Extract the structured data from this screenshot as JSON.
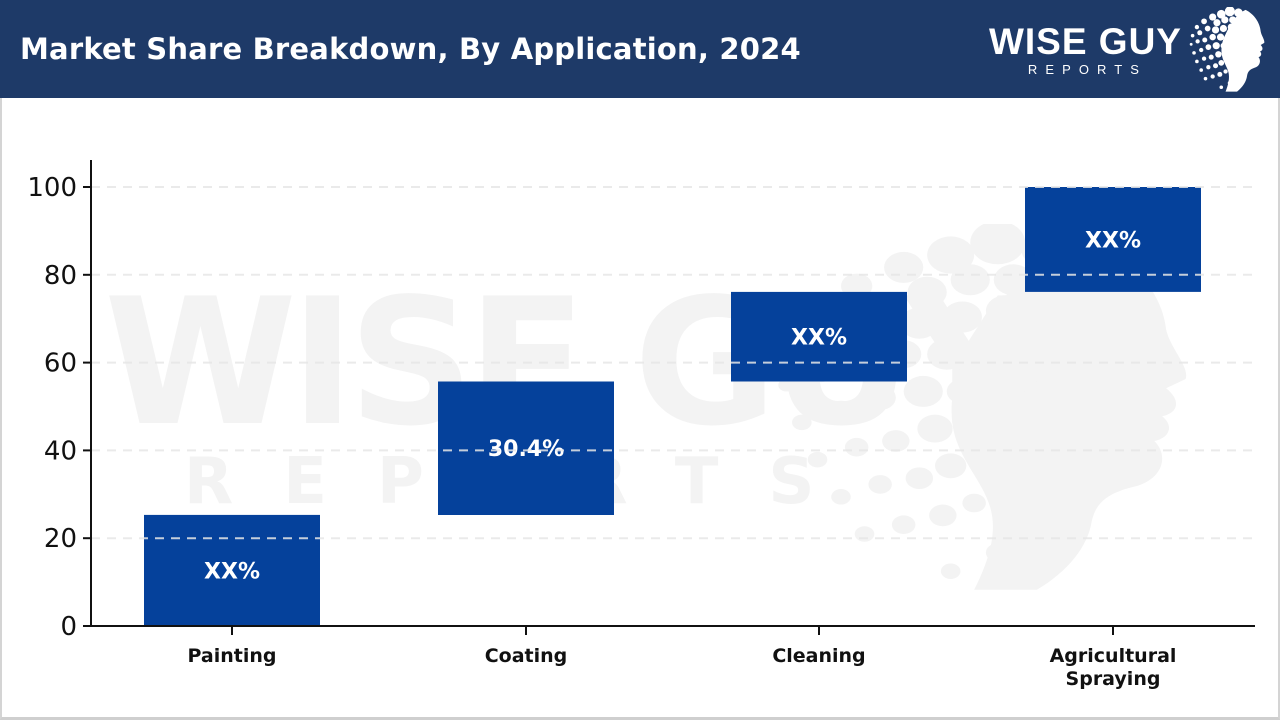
{
  "header": {
    "title": "Market Share Breakdown, By Application, 2024",
    "logo": {
      "line1": "WISE GUY",
      "line2": "REPORTS"
    }
  },
  "watermark": {
    "line1": "WISE GUY",
    "line2": "REPORTS"
  },
  "colors": {
    "header_bg": "#1e3a68",
    "title_text": "#ffffff",
    "bar": "#05419b",
    "bar_label": "#ffffff",
    "gridline": "#e7e7e7",
    "axis": "#111111",
    "watermark": "#f3f3f3"
  },
  "chart_data": {
    "type": "bar",
    "subtype": "waterfall",
    "title": "Market Share Breakdown, By Application, 2024",
    "xlabel": "",
    "ylabel": "",
    "ylim": [
      0,
      100
    ],
    "yticks": [
      0,
      20,
      40,
      60,
      80,
      100
    ],
    "grid": "dashed-horizontal",
    "legend": "none",
    "categories": [
      "Painting",
      "Coating",
      "Cleaning",
      "Agricultural Spraying"
    ],
    "segments": [
      {
        "category": "Painting",
        "start": 0,
        "end": 25.3,
        "value": 25.3,
        "label": "XX%"
      },
      {
        "category": "Coating",
        "start": 25.3,
        "end": 55.7,
        "value": 30.4,
        "label": "30.4%"
      },
      {
        "category": "Cleaning",
        "start": 55.7,
        "end": 76.1,
        "value": 20.4,
        "label": "XX%"
      },
      {
        "category": "Agricultural Spraying",
        "start": 76.1,
        "end": 100,
        "value": 23.9,
        "label": "XX%"
      }
    ]
  }
}
